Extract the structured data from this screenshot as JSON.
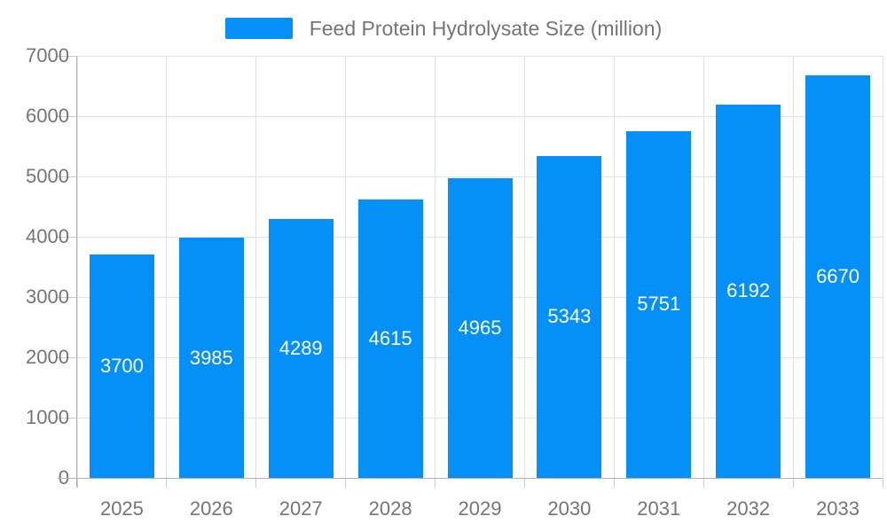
{
  "chart_data": {
    "type": "bar",
    "title": "Feed Protein Hydrolysate Size (million)",
    "categories": [
      "2025",
      "2026",
      "2027",
      "2028",
      "2029",
      "2030",
      "2031",
      "2032",
      "2033"
    ],
    "values": [
      3700,
      3985,
      4289,
      4615,
      4965,
      5343,
      5751,
      6192,
      6670
    ],
    "series_name": "Feed Protein Hydrolysate Size (million)",
    "xlabel": "",
    "ylabel": "",
    "ylim": [
      0,
      7000
    ],
    "ytick_step": 1000,
    "ytick_labels": [
      "0",
      "1000",
      "2000",
      "3000",
      "4000",
      "5000",
      "6000",
      "7000"
    ],
    "grid": true,
    "legend_position": "top-center",
    "value_labels_position": "center-inside",
    "colors": {
      "bar": "#0590f8",
      "grid_line": "#e3e3e3",
      "axis_line": "#b3b3b3",
      "tick_line": "#c9c9c9",
      "axis_text": "#757575",
      "legend_text": "#757575",
      "value_label": "#ffffff",
      "background": "#ffffff"
    }
  }
}
